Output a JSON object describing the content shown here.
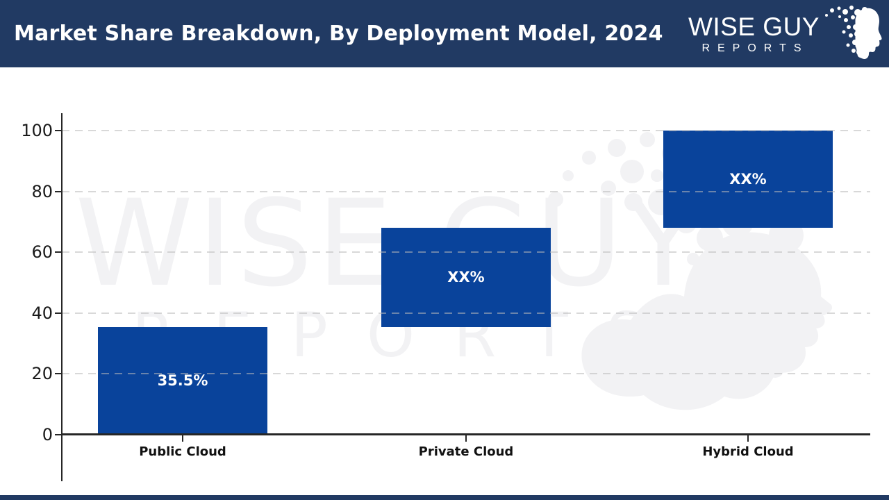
{
  "header": {
    "title": "Market Share Breakdown, By Deployment Model, 2024",
    "bg_color": "#213a63",
    "logo": {
      "line1": "WISE GUY",
      "line2": "REPORTS",
      "face_icon": "dotted-head-profile"
    }
  },
  "watermark": {
    "line1": "WISE GUY",
    "line2": "REPORTS",
    "color": "#f2f2f4"
  },
  "chart_data": {
    "type": "bar",
    "subtype": "waterfall",
    "title": "Market Share Breakdown, By Deployment Model, 2024",
    "categories": [
      "Public Cloud",
      "Private Cloud",
      "Hybrid Cloud"
    ],
    "series": [
      {
        "name": "Public Cloud",
        "start": 0,
        "end": 35.5,
        "label": "35.5%"
      },
      {
        "name": "Private Cloud",
        "start": 35.5,
        "end": 68,
        "label": "XX%"
      },
      {
        "name": "Hybrid Cloud",
        "start": 68,
        "end": 100,
        "label": "XX%"
      }
    ],
    "xlabel": "",
    "ylabel": "",
    "y_ticks": [
      0,
      20,
      40,
      60,
      80,
      100
    ],
    "ylim": [
      0,
      105
    ],
    "grid": "horizontal-dashed",
    "legend": "none",
    "bar_color": "#09439b",
    "bar_label_color": "#ffffff",
    "axis_color": "#262626"
  },
  "footer": {
    "bg_color": "#213a63"
  }
}
